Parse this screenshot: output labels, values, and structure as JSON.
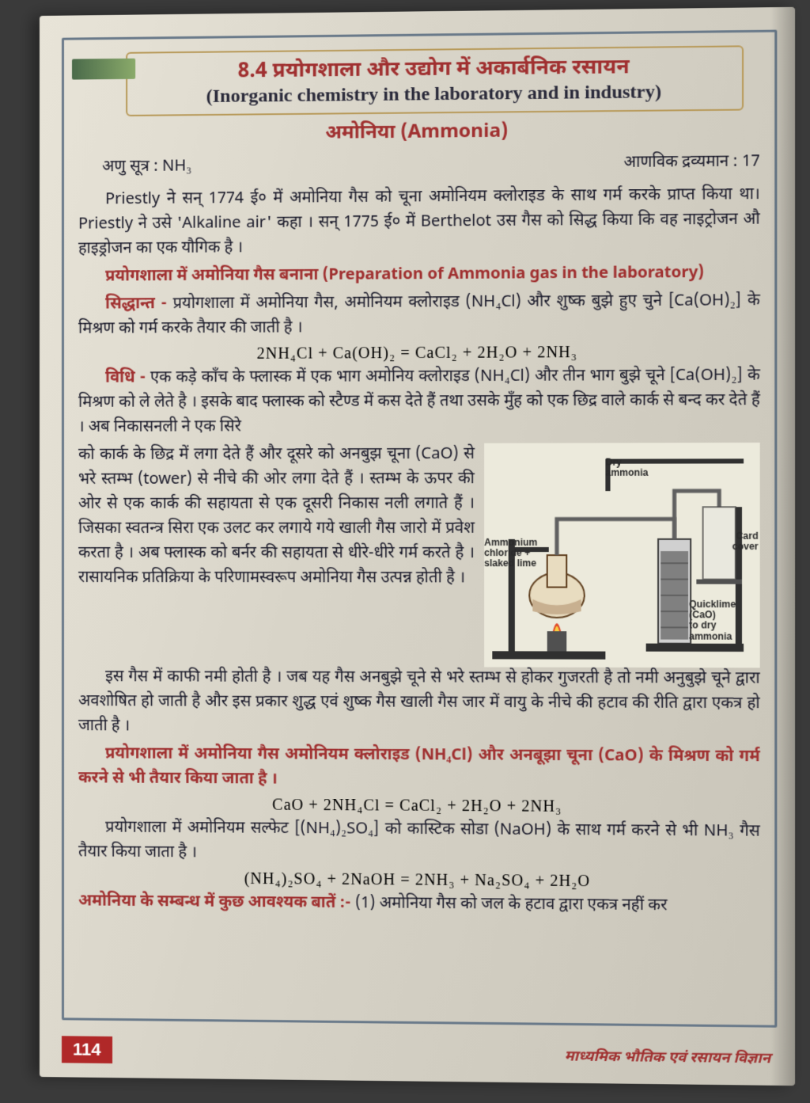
{
  "header": {
    "section_number": "8.4",
    "title_hi": "प्रयोगशाला और उद्योग में अकार्बनिक रसायन",
    "title_en": "(Inorganic chemistry in the laboratory and in industry)",
    "subtitle": "अमोनिया (Ammonia)"
  },
  "meta": {
    "formula_label": "अणु सूत्र : NH₃",
    "mass_label": "आणविक द्रव्यमान : 17"
  },
  "paragraphs": {
    "p1": "Priestly ने सन् 1774 ई० में अमोनिया गैस को चूना अमोनियम क्लोराइड के साथ गर्म करके प्राप्त किया था। Priestly ने उसे 'Alkaline air' कहा । सन् 1775 ई० में Berthelot उस गैस को सिद्ध किया कि वह नाइट्रोजन औ हाइड्रोजन का एक यौगिक है ।",
    "h2": "प्रयोगशाला में अमोनिया गैस बनाना (Preparation of Ammonia gas in the laboratory)",
    "p2a": "सिद्धान्त -",
    "p2b": " प्रयोगशाला में अमोनिया गैस, अमोनियम क्लोराइड (NH₄Cl) और शुष्क बुझे हुए चुने [Ca(OH)₂] के मिश्रण को गर्म करके तैयार की जाती है ।",
    "eq1": "2NH₄Cl  +  Ca(OH)₂  =  CaCl₂  +  2H₂O  +  2NH₃",
    "p3a": "विधि -",
    "p3b": " एक कड़े काँच के फ्लास्क में एक भाग अमोनिय क्लोराइड (NH₄Cl) और तीन भाग बुझे चूने [Ca(OH)₂] के मिश्रण को ले लेते है । इसके बाद फ्लास्क को स्टैण्ड में कस देते हैं तथा उसके मुँह को एक छिद्र वाले कार्क से बन्द कर देते हैं । अब निकासनली ने एक सिरे",
    "p3c": "को कार्क के छिद्र में लगा देते हैं और दूसरे को अनबुझ चूना (CaO) से भरे स्तम्भ (tower) से नीचे की ओर लगा देते हैं । स्तम्भ के ऊपर की ओर से एक कार्क की सहायता से एक दूसरी निकास नली लगाते हैं । जिसका स्वतन्त्र सिरा एक उलट कर लगाये गये खाली गैस जारो में प्रवेश करता है । अब फ्लास्क को बर्नर की सहायता से धीरे-धीरे गर्म करते है । रासायनिक प्रतिक्रिया के परिणामस्वरूप अमोनिया गैस उत्पन्न होती है ।",
    "p4": "इस गैस में काफी नमी होती है । जब यह गैस अनबुझे चूने से भरे स्तम्भ से होकर गुजरती है तो नमी अनुबुझे चूने द्वारा अवशोषित हो जाती है और इस प्रकार शुद्ध एवं शुष्क गैस खाली गैस जार में वायु के नीचे की हटाव की रीति द्वारा एकत्र हो जाती है ।",
    "p5": "प्रयोगशाला में अमोनिया गैस अमोनियम क्लोराइड (NH₄Cl) और अनबूझा चूना (CaO) के मिश्रण को गर्म करने से भी तैयार किया जाता है ।",
    "eq2": "CaO + 2NH₄Cl = CaCl₂ + 2H₂O + 2NH₃",
    "p6": "प्रयोगशाला में अमोनियम सल्फेट [(NH₄)₂SO₄] को कास्टिक सोडा (NaOH) के साथ गर्म करने से भी NH₃ गैस तैयार किया जाता है ।",
    "eq3": "(NH₄)₂SO₄ + 2NaOH = 2NH₃ + Na₂SO₄ + 2H₂O",
    "p7a": "अमोनिया के सम्बन्ध में कुछ आवश्यक बातें :- ",
    "p7b": "(1) अमोनिया गैस को जल के हटाव द्वारा एकत्र नहीं कर"
  },
  "diagram": {
    "lbl_dry": "Dry\nammonia",
    "lbl_amm": "Ammonium\nchloride +\nslaked lime",
    "lbl_card": "Card\ncover",
    "lbl_quick": "Quicklime (CaO)\nto dry ammonia",
    "colors": {
      "flask": "#c8b090",
      "flame": "#e04828",
      "tower_fill": "#808080",
      "stand": "#303030",
      "tube": "#606060"
    }
  },
  "footer": {
    "page_number": "114",
    "book_title": "माध्यमिक भौतिक एवं रसायन विज्ञान"
  },
  "style": {
    "red": "#a03030",
    "body_fontsize": 20,
    "title_fontsize_hi": 26,
    "title_fontsize_en": 24
  }
}
